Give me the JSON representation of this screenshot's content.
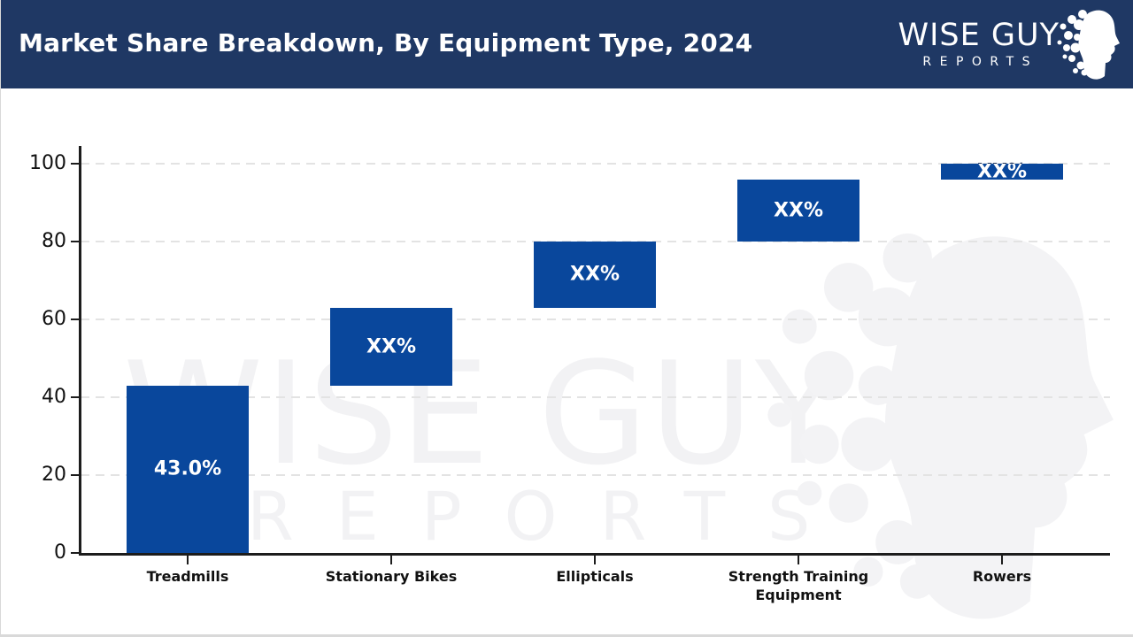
{
  "header": {
    "title": "Market Share Breakdown, By Equipment Type, 2024",
    "logo": {
      "line1": "WISE GUY",
      "line2": "REPORTS"
    }
  },
  "watermark": {
    "line1": "WISE GUY",
    "line2": "REPORTS"
  },
  "theme": {
    "header_bg": "#1F3864",
    "bar_color": "#09479C",
    "bar_label_color": "#ffffff",
    "outside_label_color": "#1a3057",
    "grid_color": "#e3e3e3",
    "axis_color": "#1c1c1c",
    "watermark_color": "#f2f2f4"
  },
  "chart_data": {
    "type": "bar",
    "subtype": "waterfall-stacked-share",
    "title": "Market Share Breakdown, By Equipment Type, 2024",
    "categories": [
      "Treadmills",
      "Stationary Bikes",
      "Ellipticals",
      "Strength Training Equipment",
      "Rowers"
    ],
    "segments": [
      {
        "category": "Treadmills",
        "label": "43.0%",
        "start": 0,
        "end": 43
      },
      {
        "category": "Stationary Bikes",
        "label": "XX%",
        "start": 43,
        "end": 63
      },
      {
        "category": "Ellipticals",
        "label": "XX%",
        "start": 63,
        "end": 80
      },
      {
        "category": "Strength Training Equipment",
        "label": "XX%",
        "start": 80,
        "end": 96
      },
      {
        "category": "Rowers",
        "label": "XX%",
        "start": 96,
        "end": 100
      }
    ],
    "yticks": [
      0,
      20,
      40,
      60,
      80,
      100
    ],
    "ylim": [
      0,
      100
    ],
    "xlabel": "",
    "ylabel": "",
    "grid": "horizontal-dashed",
    "legend": "none",
    "bar_color": "#09479C"
  }
}
